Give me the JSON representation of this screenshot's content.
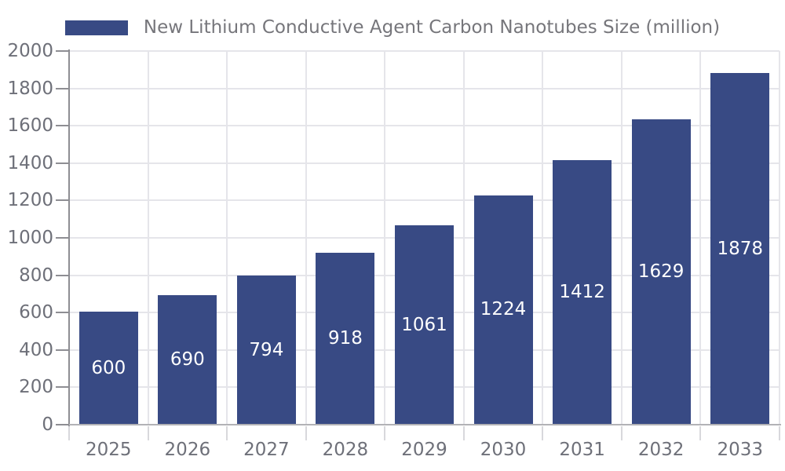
{
  "legend": {
    "label": "New Lithium Conductive Agent Carbon Nanotubes Size (million)"
  },
  "chart_data": {
    "type": "bar",
    "title": "New Lithium Conductive Agent Carbon Nanotubes Size (million)",
    "categories": [
      "2025",
      "2026",
      "2027",
      "2028",
      "2029",
      "2030",
      "2031",
      "2032",
      "2033"
    ],
    "series": [
      {
        "name": "New Lithium Conductive Agent Carbon Nanotubes Size (million)",
        "values": [
          600,
          690,
          794,
          918,
          1061,
          1224,
          1412,
          1629,
          1878
        ]
      }
    ],
    "xlabel": "",
    "ylabel": "",
    "ylim": [
      0,
      2000
    ],
    "yticks": [
      0,
      200,
      400,
      600,
      800,
      1000,
      1200,
      1400,
      1600,
      1800,
      2000
    ],
    "grid": true,
    "legend_position": "top",
    "bar_labels_inside": true,
    "colors": {
      "bar": "#384A84",
      "bar_label": "#FFFFFF",
      "axis_label": "#6E7079",
      "legend_text": "#76767B",
      "gridline": "#E5E5EA",
      "y_axis_line": "#8E8E93",
      "x_axis_line": "#B2B2B6",
      "x_tick": "#D8D8DC",
      "background": "#FFFFFF"
    }
  }
}
